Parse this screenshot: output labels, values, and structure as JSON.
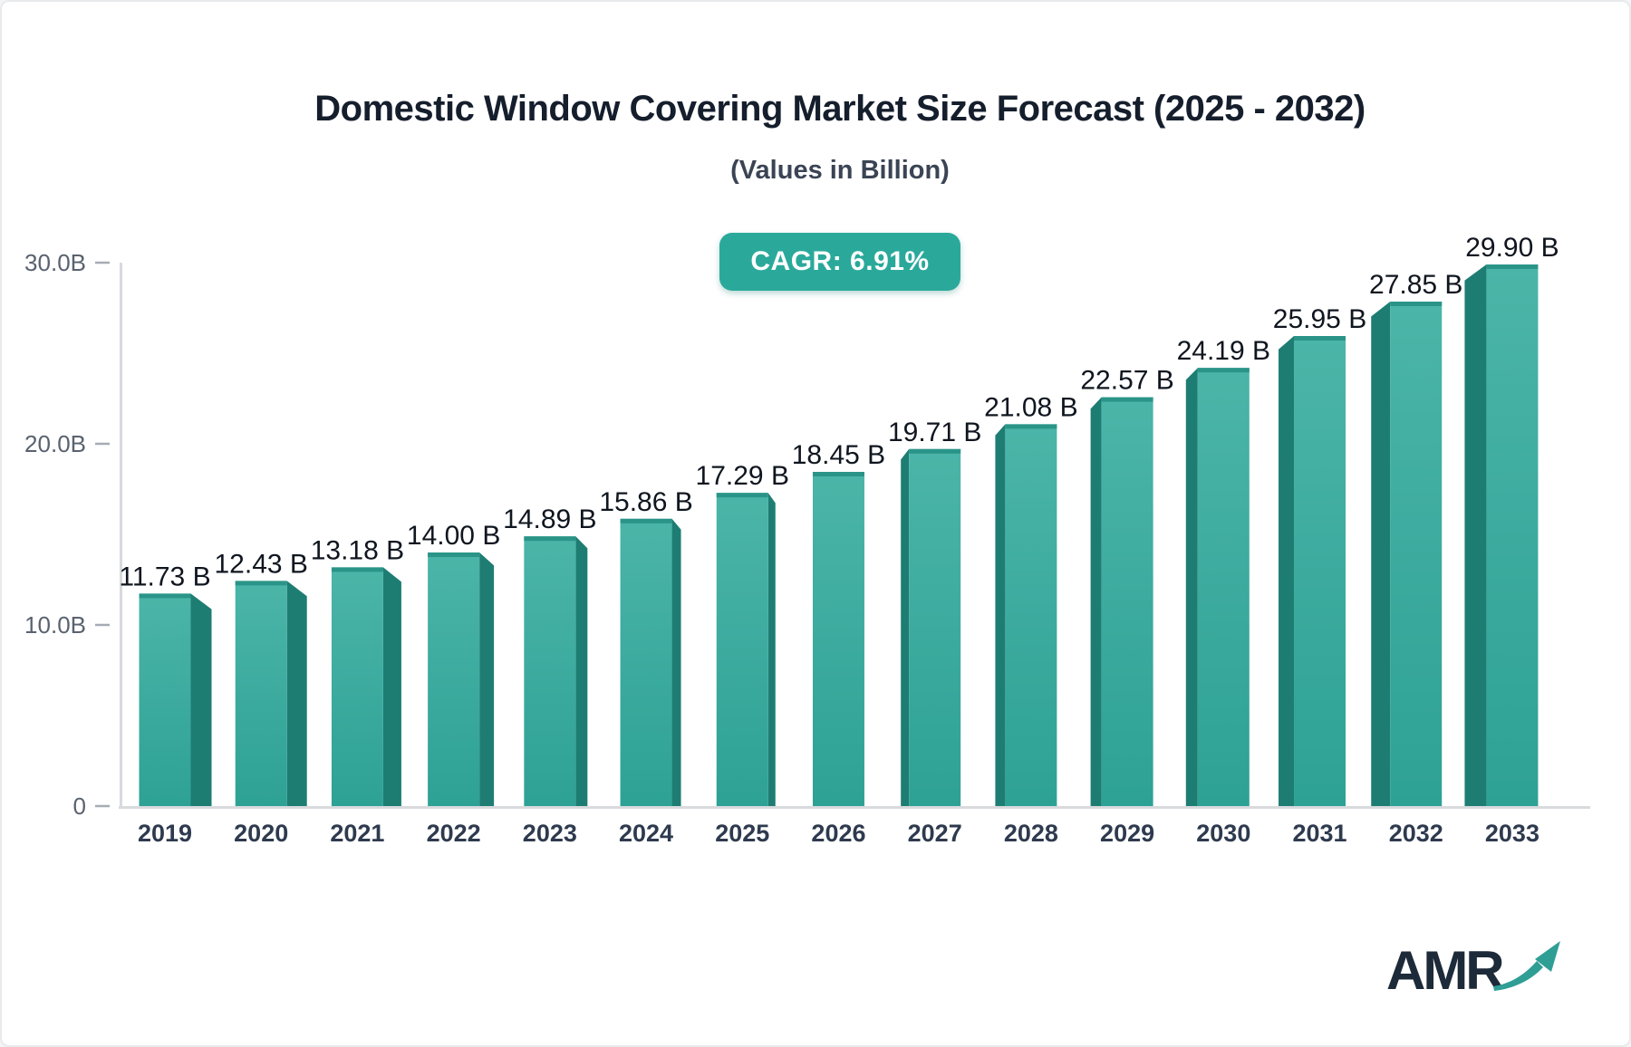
{
  "header": {
    "title": "Domestic Window Covering Market Size Forecast (2025 - 2032)",
    "subtitle": "(Values in Billion)",
    "cagr_label": "CAGR: 6.91%",
    "badge_color": "#2aa99b"
  },
  "chart_data": {
    "type": "bar",
    "title": "Domestic Window Covering Market Size Forecast (2025 - 2032)",
    "subtitle": "(Values in Billion)",
    "cagr_text": "CAGR: 6.91%",
    "cagr_value_percent": 6.91,
    "unit": "Billion",
    "categories": [
      "2019",
      "2020",
      "2021",
      "2022",
      "2023",
      "2024",
      "2025",
      "2026",
      "2027",
      "2028",
      "2029",
      "2030",
      "2031",
      "2032",
      "2033"
    ],
    "values": [
      11.73,
      12.43,
      13.18,
      14.0,
      14.89,
      15.86,
      17.29,
      18.45,
      19.71,
      21.08,
      22.57,
      24.19,
      25.95,
      27.85,
      29.9
    ],
    "value_labels": [
      "11.73 B",
      "12.43 B",
      "13.18 B",
      "14.00 B",
      "14.89 B",
      "15.86 B",
      "17.29 B",
      "18.45 B",
      "19.71 B",
      "21.08 B",
      "22.57 B",
      "24.19 B",
      "25.95 B",
      "27.85 B",
      "29.90 B"
    ],
    "ylim": [
      0,
      30
    ],
    "yticks": [
      {
        "v": 0,
        "label": "0"
      },
      {
        "v": 10,
        "label": "10.0B"
      },
      {
        "v": 20,
        "label": "20.0B"
      },
      {
        "v": 30,
        "label": "30.0B"
      }
    ],
    "grid": false,
    "legend": null,
    "colors": {
      "bar_face_top": "#4bb5a8",
      "bar_face_bottom": "#2ea195",
      "bar_top_edge": "#2b9488",
      "bar_side": "#1e7d73",
      "axis_line": "#d8dadd",
      "tick_dash": "#a6acb5",
      "ytick_label": "#59626f",
      "xtick_label": "#2e3a4e",
      "value_label": "#10161f"
    }
  },
  "branding": {
    "logo_text": "AMR",
    "logo_text_color": "#1d2a39",
    "logo_arrow_color": "#2f9e95"
  }
}
